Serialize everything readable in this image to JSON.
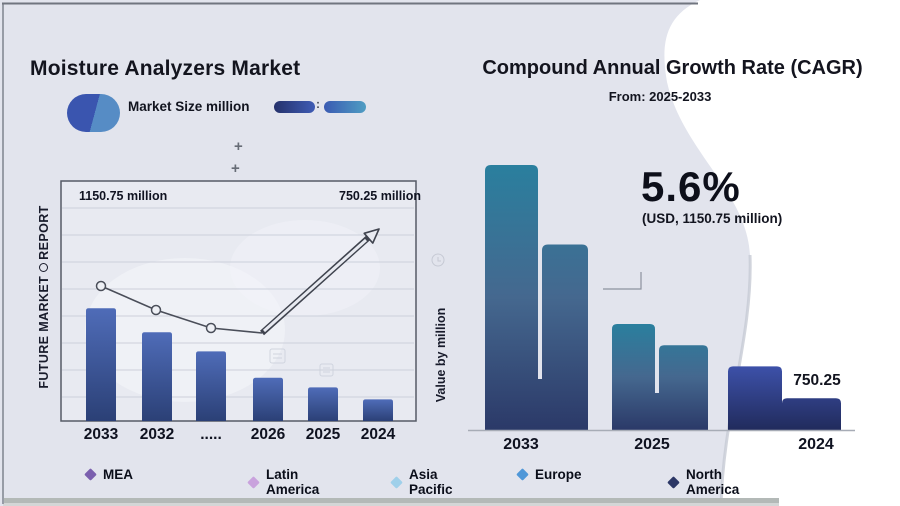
{
  "page": {
    "left": {
      "title": "Moisture Analyzers Market",
      "icon_label": "Market Size million",
      "ratio_separator": ":",
      "plus_mark": "+",
      "watermark_part1": "FUTURE MARKET",
      "watermark_part2": "REPORT",
      "chart": {
        "start_value_label": "1150.75 million",
        "end_value_label": "750.25 million"
      }
    },
    "right": {
      "title": "Compound Annual Growth Rate (CAGR)",
      "subtitle": "From: 2025-2033",
      "cagr_value": "5.6%",
      "cagr_basis": "(USD, 1150.75 million)",
      "ylabel": "Value by million",
      "bar_annotation": "750.25"
    },
    "legend": [
      {
        "label": "MEA",
        "color": "#7a5fae"
      },
      {
        "label": "Latin America",
        "color": "#c9a2dd"
      },
      {
        "label": "Asia Pacific",
        "color": "#9fd0ea"
      },
      {
        "label": "Europe",
        "color": "#4f97d8"
      },
      {
        "label": "North America",
        "color": "#2c3766"
      }
    ]
  },
  "chart_data": [
    {
      "id": "market-size-trend",
      "type": "bar",
      "title": "Market Size million",
      "categories": [
        "2033",
        "2032",
        ".....",
        "2026",
        "2025",
        "2024"
      ],
      "values_pct_of_plot": [
        47,
        37,
        29,
        18,
        14,
        9
      ],
      "value_labels": {
        "left": "1150.75 million",
        "right": "750.25 million"
      },
      "overlay": "declining marker line over first three bars, then hollow arrow rising to upper right",
      "grid": "horizontal gridlines, no numeric axis",
      "bar_color_gradient": [
        "#4f6cb8",
        "#2b4076"
      ]
    },
    {
      "id": "cagr-paired-bars",
      "type": "bar",
      "categories": [
        "2033",
        "2025",
        "2024"
      ],
      "series": [
        {
          "name": "primary",
          "values_pct": [
            100,
            40,
            24
          ]
        },
        {
          "name": "secondary",
          "values_pct": [
            70,
            32,
            12
          ]
        }
      ],
      "annotations": {
        "2024_secondary": "750.25"
      },
      "headline": {
        "cagr": "5.6%",
        "basis": "(USD, 1150.75 million)",
        "period": "From: 2025-2033"
      },
      "ylabel": "Value by million",
      "palette_2033_2025": [
        "#2a7f9e",
        "#45688f",
        "#2b3968"
      ],
      "palette_2024": [
        "#3d51a9",
        "#212b5c"
      ]
    }
  ]
}
